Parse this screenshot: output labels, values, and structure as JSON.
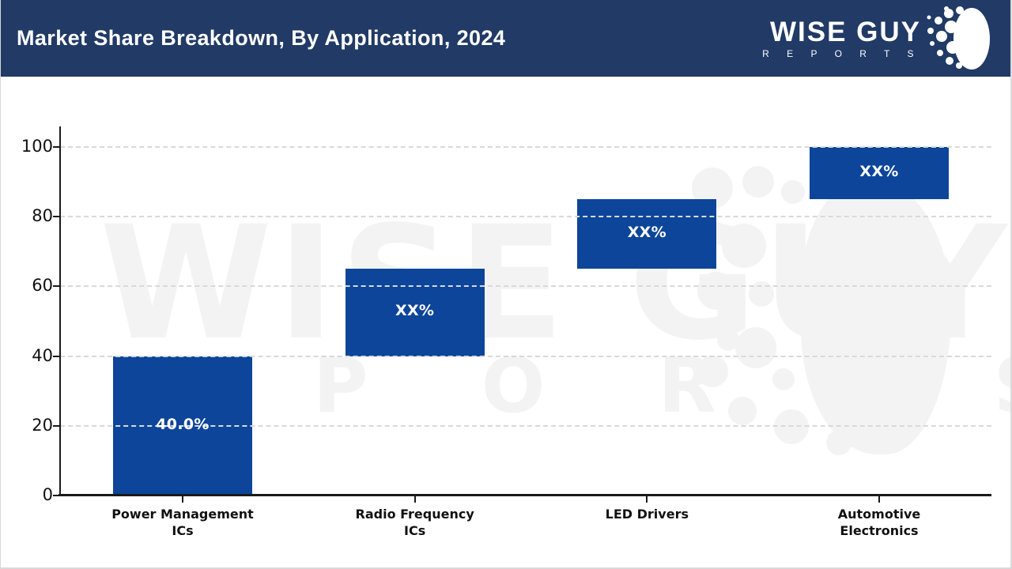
{
  "header": {
    "title": "Market Share Breakdown, By Application, 2024",
    "logo": {
      "name": "WISE GUY",
      "sub": "R E P O R T S"
    }
  },
  "watermark": {
    "line1": "WISE GUY",
    "line2": "P O R T S"
  },
  "chart_data": {
    "type": "bar",
    "variant": "floating-breakdown-bars",
    "title": "Market Share Breakdown, By Application, 2024",
    "categories": [
      "Power Management\nICs",
      "Radio Frequency\nICs",
      "LED Drivers",
      "Automotive\nElectronics"
    ],
    "bars": [
      {
        "category": "Power Management\nICs",
        "start": 0,
        "end": 40,
        "label": "40.0%"
      },
      {
        "category": "Radio Frequency\nICs",
        "start": 40,
        "end": 65,
        "label": "XX%"
      },
      {
        "category": "LED Drivers",
        "start": 65,
        "end": 85,
        "label": "XX%"
      },
      {
        "category": "Automotive\nElectronics",
        "start": 85,
        "end": 100,
        "label": "XX%"
      }
    ],
    "yticks": [
      0,
      20,
      40,
      60,
      80,
      100
    ],
    "ylim": [
      0,
      105
    ],
    "xlabel": "",
    "ylabel": "",
    "grid": "horizontal-dashed",
    "legend": "none",
    "colors": {
      "bar": "#0C459A",
      "bar_label": "#ffffff",
      "header_bg": "#213A66",
      "grid": "#d9d9d9",
      "axis": "#1a1a1a",
      "watermark": "#f3f3f3",
      "frame_border": "#d9d9d9"
    }
  }
}
